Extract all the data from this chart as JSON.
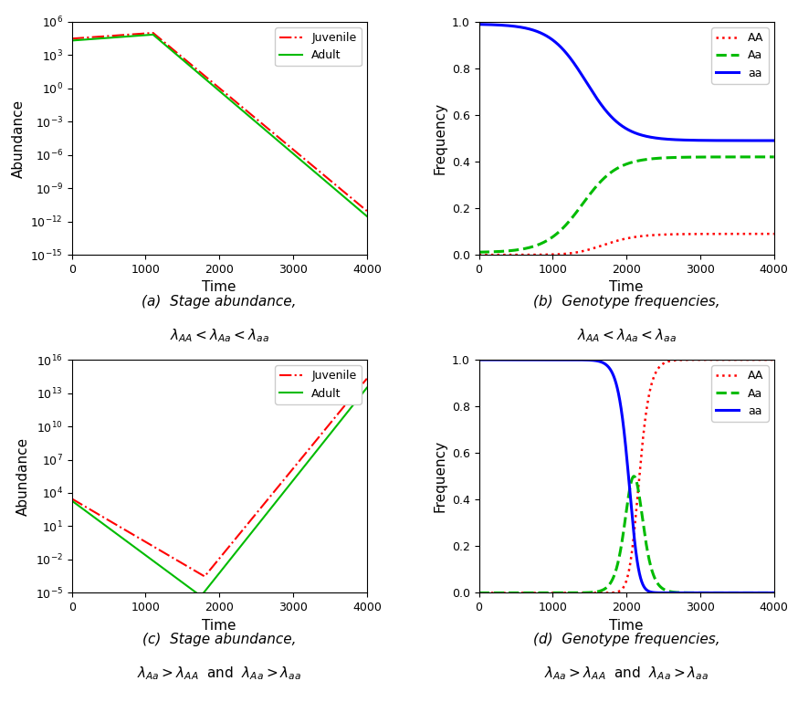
{
  "xlabel": "Time",
  "ylabel_left": "Abundance",
  "ylabel_right": "Frequency",
  "xlim": [
    0,
    4000
  ],
  "ylim_a": [
    1e-15,
    1000000.0
  ],
  "ylim_b": [
    0,
    1
  ],
  "ylim_c": [
    1e-05,
    1e+16
  ],
  "ylim_d": [
    0,
    1
  ],
  "juvenile_color": "#ff0000",
  "adult_color": "#00bb00",
  "AA_color": "#ff0000",
  "Aa_color": "#00bb00",
  "aa_color": "#0000ff",
  "bg_color": "#ffffff",
  "cap_a1": "(a)  Stage abundance,",
  "cap_a2": "$\\lambda_{AA} < \\lambda_{Aa} < \\lambda_{aa}$",
  "cap_b1": "(b)  Genotype frequencies,",
  "cap_b2": "$\\lambda_{AA} < \\lambda_{Aa} < \\lambda_{aa}$",
  "cap_c1": "(c)  Stage abundance,",
  "cap_c2": "$\\lambda_{Aa} > \\lambda_{AA}$  and  $\\lambda_{Aa} > \\lambda_{aa}$",
  "cap_d1": "(d)  Genotype frequencies,",
  "cap_d2": "$\\lambda_{Aa} > \\lambda_{AA}$  and  $\\lambda_{Aa} > \\lambda_{aa}$"
}
